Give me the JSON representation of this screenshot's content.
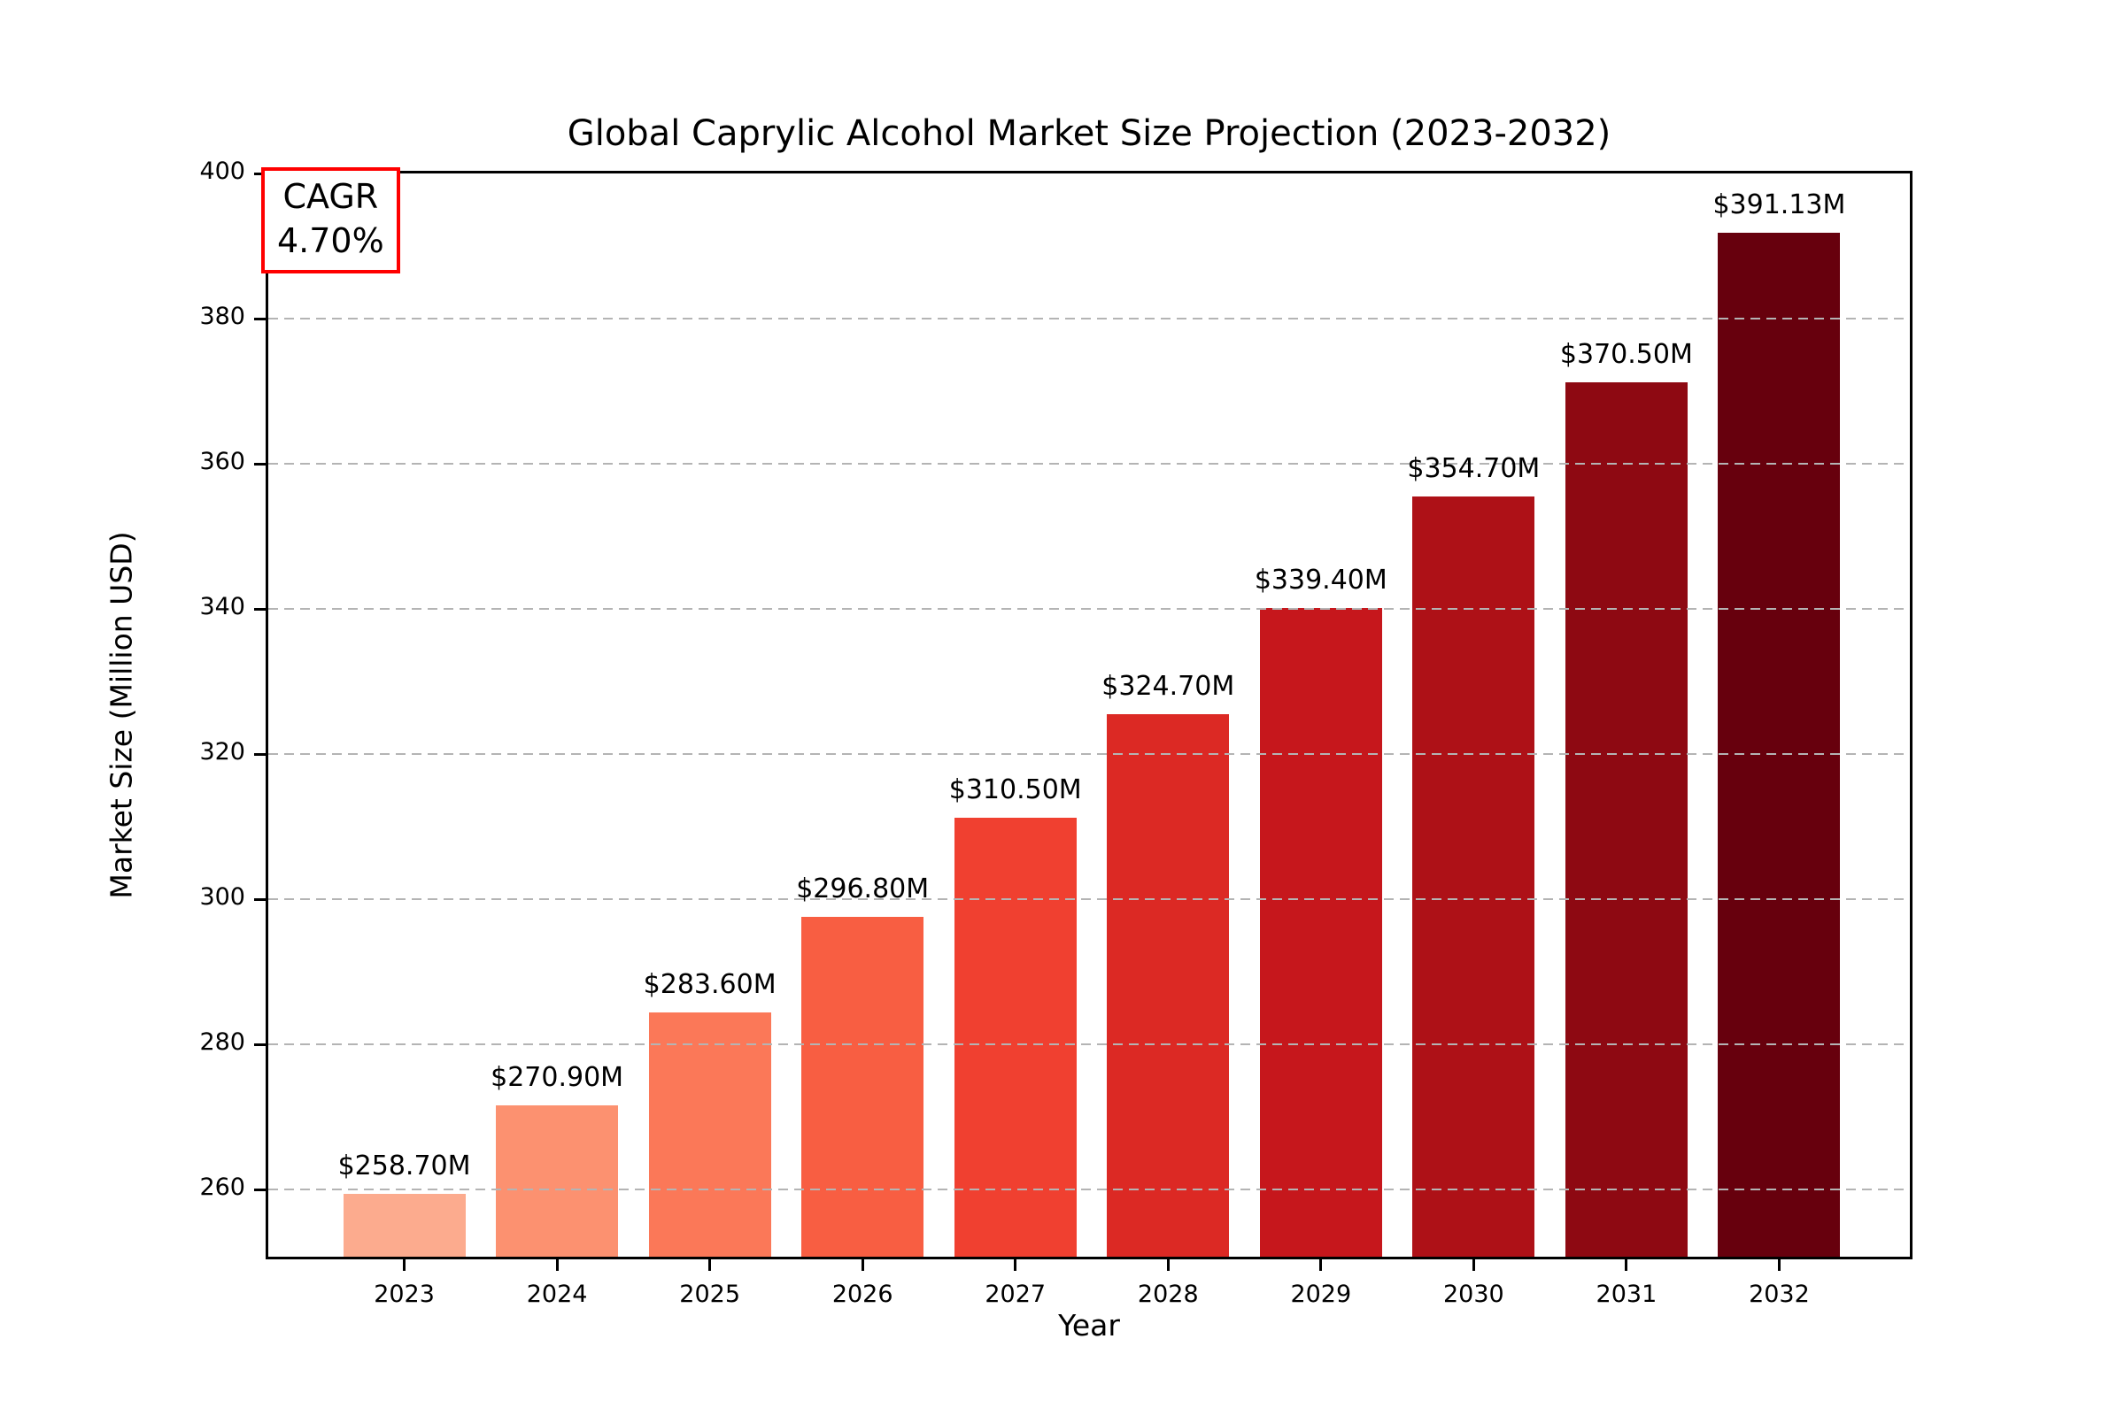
{
  "chart_data": {
    "type": "bar",
    "title": "Global Caprylic Alcohol Market Size Projection (2023-2032)",
    "xlabel": "Year",
    "ylabel": "Market Size (Million USD)",
    "categories": [
      "2023",
      "2024",
      "2025",
      "2026",
      "2027",
      "2028",
      "2029",
      "2030",
      "2031",
      "2032"
    ],
    "values": [
      258.7,
      270.9,
      283.6,
      296.8,
      310.5,
      324.7,
      339.4,
      354.7,
      370.5,
      391.13
    ],
    "bar_labels": [
      "$258.70M",
      "$270.90M",
      "$283.60M",
      "$296.80M",
      "$310.50M",
      "$324.70M",
      "$339.40M",
      "$354.70M",
      "$370.50M",
      "$391.13M"
    ],
    "bar_colors": [
      "#fcab8e",
      "#fc9170",
      "#fb7858",
      "#f85e42",
      "#f04030",
      "#dc2924",
      "#c6171c",
      "#ae1117",
      "#8e0912",
      "#67000d"
    ],
    "ylim": [
      250,
      400
    ],
    "yticks": [
      260,
      280,
      300,
      320,
      340,
      360,
      380,
      400
    ],
    "bar_width_fraction": 0.8,
    "grid": "dashed-horizontal",
    "legend": "none",
    "annotation": {
      "line1": "CAGR",
      "line2": "4.70%",
      "border_color": "#ff0000",
      "background": "#ffffff"
    }
  },
  "colors": {
    "background": "#ffffff",
    "axis": "#000000",
    "gridline": "#b4b4b4",
    "text": "#000000"
  }
}
